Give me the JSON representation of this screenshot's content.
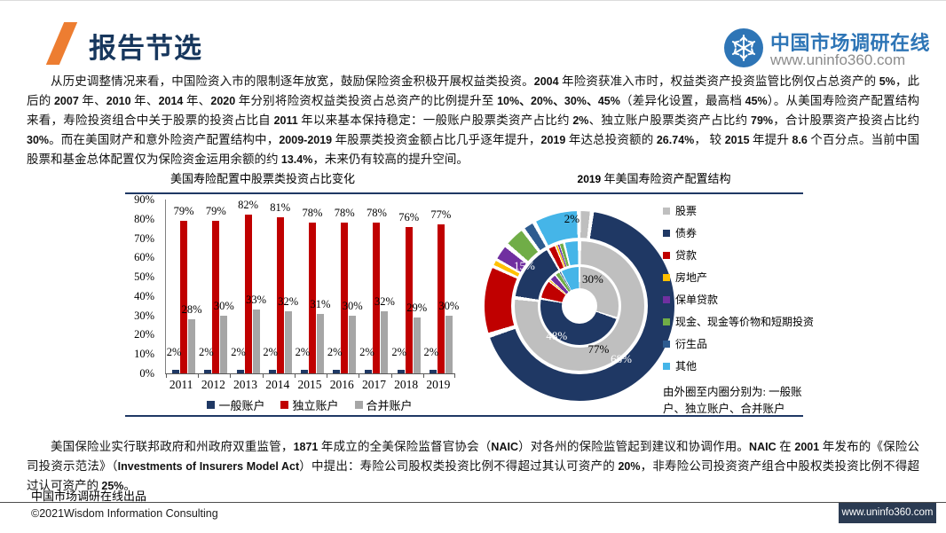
{
  "header": {
    "title": "报告节选",
    "brand_name": "中国市场调研在线",
    "brand_url": "www.uninfo360.com"
  },
  "paragraphs": {
    "p1": [
      {
        "t": "从历史调整情况来看，中国险资入市的限制逐年放宽，鼓励保险资金积极开展权益类投资。"
      },
      {
        "t": "2004",
        "b": true
      },
      {
        "t": " 年险资获准入市时，权益类资产投资监管比例仅占总资产的 "
      },
      {
        "t": "5%",
        "b": true
      },
      {
        "t": "，此后的 "
      },
      {
        "t": "2007",
        "b": true
      },
      {
        "t": " 年、"
      },
      {
        "t": "2010",
        "b": true
      },
      {
        "t": " 年、"
      },
      {
        "t": "2014",
        "b": true
      },
      {
        "t": " 年、"
      },
      {
        "t": "2020",
        "b": true
      },
      {
        "t": " 年分别将险资权益类投资占总资产的比例提升至 "
      },
      {
        "t": "10%、20%、30%、45%",
        "b": true
      },
      {
        "t": "（差异化设置，最高档 "
      },
      {
        "t": "45%",
        "b": true
      },
      {
        "t": "）。从美国寿险资产配置结构来看，寿险投资组合中关于股票的投资占比自 "
      },
      {
        "t": "2011",
        "b": true
      },
      {
        "t": " 年以来基本保持稳定：一般账户股票类资产占比约 "
      },
      {
        "t": "2%",
        "b": true
      },
      {
        "t": "、独立账户股票类资产占比约 "
      },
      {
        "t": "79%",
        "b": true
      },
      {
        "t": "，合计股票资产投资占比约 "
      },
      {
        "t": "30%",
        "b": true
      },
      {
        "t": "。而在美国财产和意外险资产配置结构中，"
      },
      {
        "t": "2009-2019",
        "b": true
      },
      {
        "t": " 年股票类投资金额占比几乎逐年提升，"
      },
      {
        "t": "2019",
        "b": true
      },
      {
        "t": " 年达总投资额的 "
      },
      {
        "t": "26.74%",
        "b": true
      },
      {
        "t": "， 较 "
      },
      {
        "t": "2015",
        "b": true
      },
      {
        "t": " 年提升 "
      },
      {
        "t": "8.6",
        "b": true
      },
      {
        "t": " 个百分点。当前中国股票和基金总体配置仅为保险资金运用余额的约 "
      },
      {
        "t": "13.4%",
        "b": true
      },
      {
        "t": "，未来仍有较高的提升空间。"
      }
    ],
    "p2": [
      {
        "t": "美国保险业实行联邦政府和州政府双重监管，"
      },
      {
        "t": "1871",
        "b": true
      },
      {
        "t": " 年成立的全美保险监督官协会（"
      },
      {
        "t": "NAIC",
        "b": true
      },
      {
        "t": "）对各州的保险监管起到建议和协调作用。"
      },
      {
        "t": "NAIC",
        "b": true
      },
      {
        "t": " 在 "
      },
      {
        "t": "2001",
        "b": true
      },
      {
        "t": " 年发布的《保险公司投资示范法》（"
      },
      {
        "t": "Investments of Insurers Model Act",
        "b": true
      },
      {
        "t": "）中提出：寿险公司股权类投资比例不得超过其认可资产的 "
      },
      {
        "t": "20%",
        "b": true
      },
      {
        "t": "，非寿险公司投资资产组合中股权类投资比例不得超过认可资产的 "
      },
      {
        "t": "25%",
        "b": true
      },
      {
        "t": "。"
      }
    ],
    "title_left": [
      {
        "t": "美国寿险配置中股票类投资占比变化"
      }
    ],
    "title_right": [
      {
        "t": "2019",
        "b": true
      },
      {
        "t": " 年美国寿险资产配置结构"
      }
    ]
  },
  "chart_data": [
    {
      "type": "bar",
      "title": "美国寿险配置中股票类投资占比变化",
      "categories": [
        "2011",
        "2012",
        "2013",
        "2014",
        "2015",
        "2016",
        "2017",
        "2018",
        "2019"
      ],
      "series": [
        {
          "name": "一般账户",
          "color": "#1F3864",
          "values": [
            2,
            2,
            2,
            2,
            2,
            2,
            2,
            2,
            2
          ]
        },
        {
          "name": "独立账户",
          "color": "#C00000",
          "values": [
            79,
            79,
            82,
            81,
            78,
            78,
            78,
            76,
            77
          ]
        },
        {
          "name": "合并账户",
          "color": "#A6A6A6",
          "values": [
            28,
            30,
            33,
            32,
            31,
            30,
            32,
            29,
            30
          ]
        }
      ],
      "ylim": [
        0,
        90
      ],
      "ytick_step": 10,
      "ytick_format": "percent",
      "value_labels": true,
      "legend_position": "bottom",
      "grid": false
    },
    {
      "type": "donut",
      "title": "2019 年美国寿险资产配置结构",
      "note": "由外圈至内圈分别为: 一般账户、独立账户、合并账户",
      "legend_position": "right",
      "categories": [
        "股票",
        "债券",
        "贷款",
        "房地产",
        "保单贷款",
        "现金、现金等价物和短期投资",
        "衍生品",
        "其他"
      ],
      "colors": [
        "#BFBFBF",
        "#1F3864",
        "#C00000",
        "#FFC000",
        "#7030A0",
        "#70AD47",
        "#2E5B8F",
        "#45B5E8"
      ],
      "rings": [
        {
          "name": "一般账户",
          "position": "outer",
          "values": [
            2,
            68,
            12,
            1,
            3,
            4,
            2,
            8
          ]
        },
        {
          "name": "独立账户",
          "position": "middle",
          "values": [
            77,
            15,
            2,
            0.5,
            0.5,
            1,
            0,
            4
          ]
        },
        {
          "name": "合并账户",
          "position": "inner",
          "values": [
            30,
            48,
            8,
            0.5,
            3,
            2,
            0.5,
            8
          ]
        }
      ],
      "shown_labels": [
        {
          "text": "2%",
          "x": 46,
          "y": 4,
          "color": "#000000"
        },
        {
          "text": "15%",
          "x": 21,
          "y": 29,
          "color": "#FFFFFF"
        },
        {
          "text": "30%",
          "x": 57,
          "y": 36,
          "color": "#000000"
        },
        {
          "text": "48%",
          "x": 38,
          "y": 66,
          "color": "#FFFFFF"
        },
        {
          "text": "77%",
          "x": 60,
          "y": 73,
          "color": "#000000"
        },
        {
          "text": "68%",
          "x": 72,
          "y": 78,
          "color": "#FFFFFF"
        }
      ]
    }
  ],
  "footer": {
    "produced_by": "中国市场调研在线出品",
    "copyright": "©2021Wisdom Information Consulting",
    "site": "www.uninfo360.com"
  }
}
